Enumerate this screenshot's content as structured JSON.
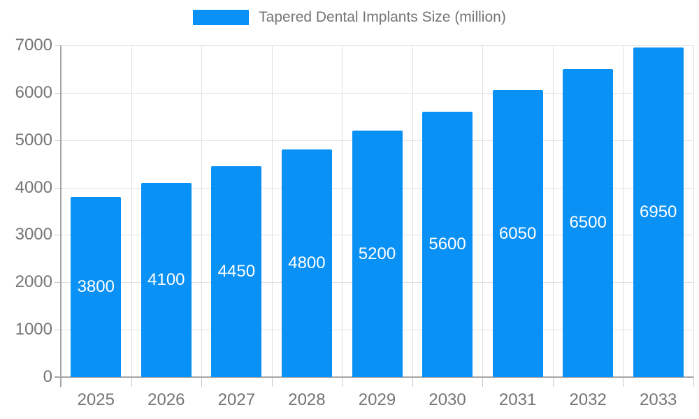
{
  "chart_data": {
    "type": "bar",
    "title": "Tapered Dental Implants Size (million)",
    "categories": [
      "2025",
      "2026",
      "2027",
      "2028",
      "2029",
      "2030",
      "2031",
      "2032",
      "2033"
    ],
    "values": [
      3800,
      4100,
      4450,
      4800,
      5200,
      5600,
      6050,
      6500,
      6950
    ],
    "value_labels": [
      "3800",
      "4100",
      "4450",
      "4800",
      "5200",
      "5600",
      "6050",
      "6500",
      "6950"
    ],
    "xlabel": "",
    "ylabel": "",
    "ylim": [
      0,
      7000
    ],
    "ytick_step": 1000,
    "ytick_labels": [
      "0",
      "1000",
      "2000",
      "3000",
      "4000",
      "5000",
      "6000",
      "7000"
    ],
    "grid": "both",
    "legend_position": "top-center",
    "colors": {
      "bar": "#0a91f5",
      "grid": "#e0e0e0",
      "axis": "#a6a6a6",
      "tick": "#c9c9c9",
      "label_text": "#757575",
      "value_text": "#ffffff",
      "background": "#ffffff"
    }
  }
}
